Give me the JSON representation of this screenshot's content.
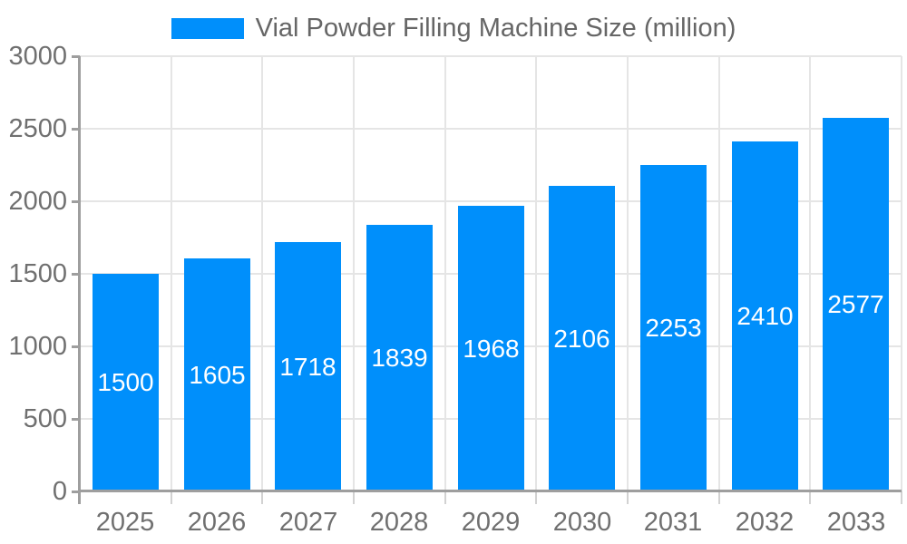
{
  "legend": {
    "series_label": "Vial Powder Filling Machine Size (million)"
  },
  "chart_data": {
    "type": "bar",
    "title": "Vial Powder Filling Machine Size (million)",
    "categories": [
      "2025",
      "2026",
      "2027",
      "2028",
      "2029",
      "2030",
      "2031",
      "2032",
      "2033"
    ],
    "values": [
      1500,
      1605,
      1718,
      1839,
      1968,
      2106,
      2253,
      2410,
      2577
    ],
    "xlabel": "",
    "ylabel": "",
    "ylim": [
      0,
      3000
    ],
    "yticks": [
      0,
      500,
      1000,
      1500,
      2000,
      2500,
      3000
    ],
    "grid": true,
    "legend_position": "top",
    "bar_value_labels_inside": true
  },
  "colors": {
    "bar": "#008FFB",
    "grid": "#e5e5e5",
    "axis_line": "#9e9e9e",
    "x_tick": "#d2d2d2",
    "axis_text": "#707070",
    "legend_text": "#666666",
    "bar_label_text": "#ffffff",
    "background": "#ffffff"
  }
}
